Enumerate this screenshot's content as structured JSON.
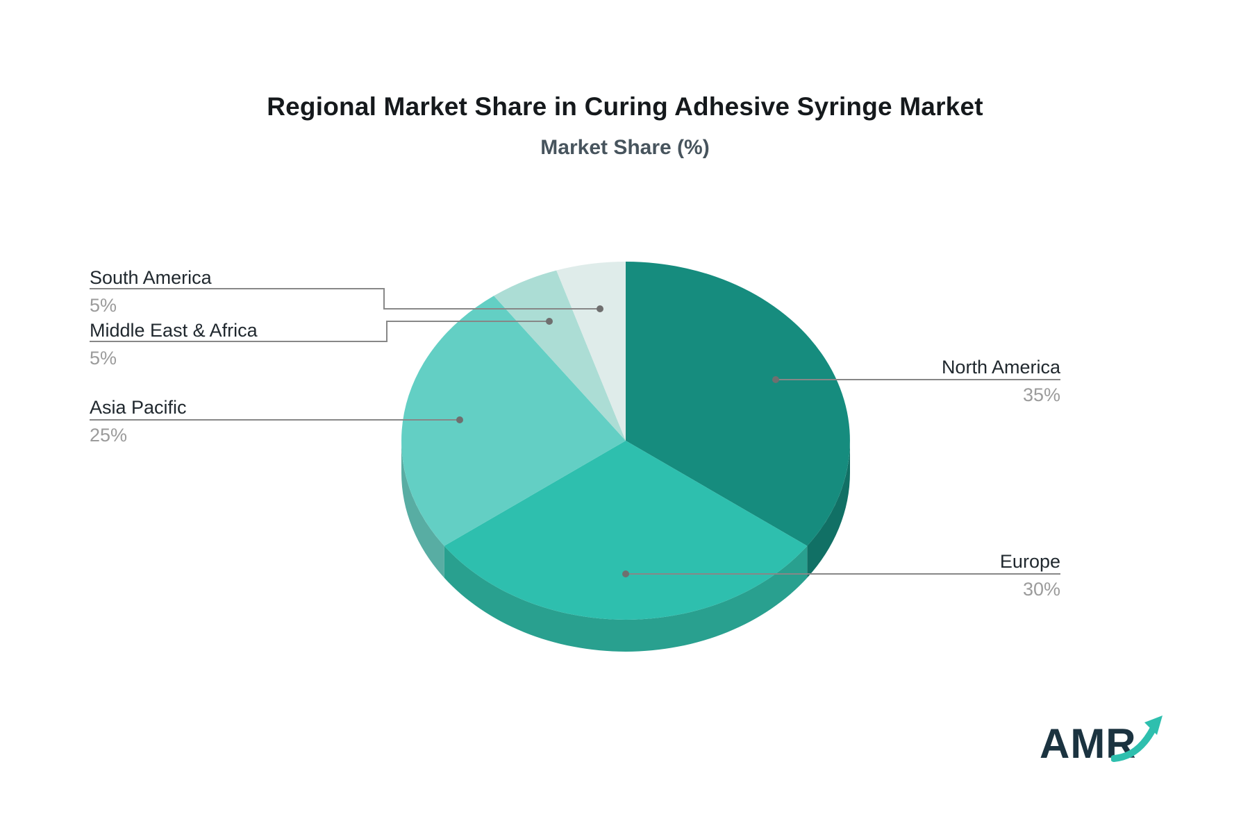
{
  "header": {
    "title": "Regional Market Share in Curing Adhesive Syringe Market",
    "subtitle": "Market Share (%)"
  },
  "chart_data": {
    "type": "pie",
    "style": "3d-pie",
    "title": "Regional Market Share in Curing Adhesive Syringe Market",
    "subtitle": "Market Share (%)",
    "unit": "%",
    "total": 100,
    "start_angle_deg": 0,
    "direction": "clockwise",
    "slices": [
      {
        "label": "North America",
        "value": 35,
        "pct": "35%",
        "color": "#168C7E",
        "side_color": "#117065",
        "callout_side": "right"
      },
      {
        "label": "Europe",
        "value": 30,
        "pct": "30%",
        "color": "#2EBFAE",
        "side_color": "#29A08F",
        "callout_side": "right"
      },
      {
        "label": "Asia Pacific",
        "value": 25,
        "pct": "25%",
        "color": "#63CFC4",
        "side_color": "#58ADA3",
        "callout_side": "left"
      },
      {
        "label": "Middle East & Africa",
        "value": 5,
        "pct": "5%",
        "color": "#ACDDD5",
        "side_color": "#93C4BC",
        "callout_side": "left"
      },
      {
        "label": "South America",
        "value": 5,
        "pct": "5%",
        "color": "#DFECEA",
        "side_color": "#C4D6D3",
        "callout_side": "left"
      }
    ],
    "legend_position": "callouts",
    "leader_line_color": "#878787",
    "leader_dot_color": "#6f6f6f",
    "label_text_color": "#20282e",
    "pct_text_color": "#9b9b9b"
  },
  "logo": {
    "text": "AMR",
    "text_color": "#1b3340",
    "arrow_color": "#2EBFAE"
  }
}
